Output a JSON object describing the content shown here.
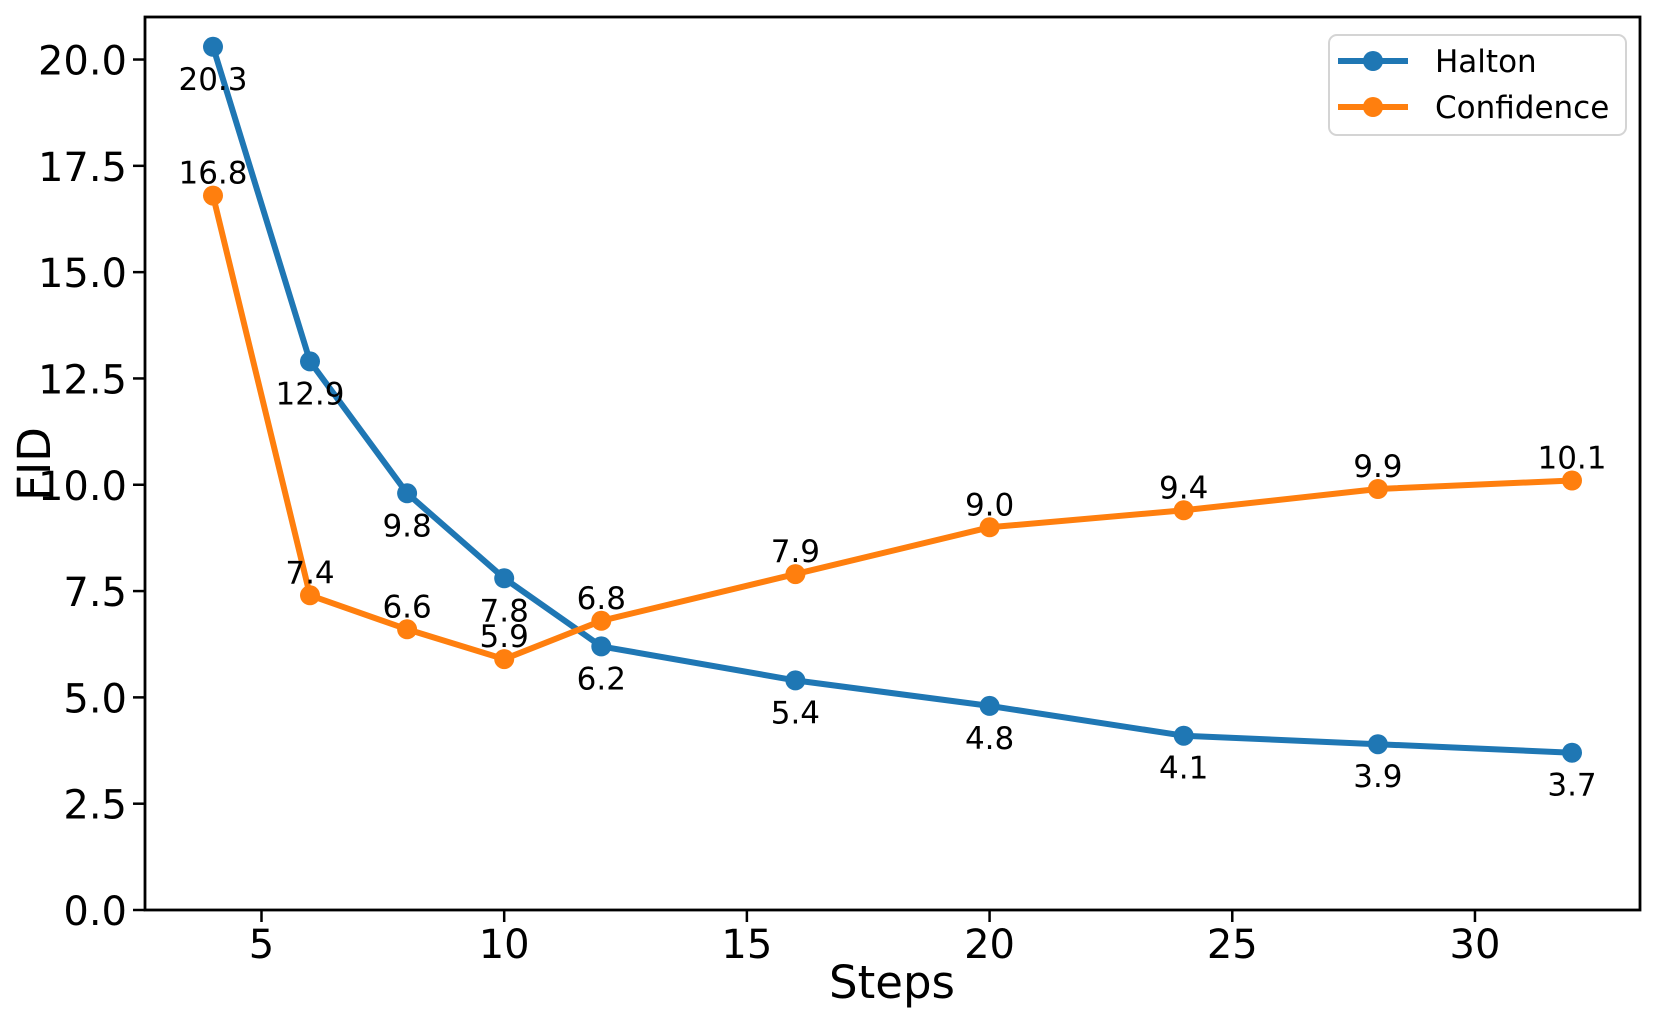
{
  "chart_data": {
    "type": "line",
    "title": "",
    "xlabel": "Steps",
    "ylabel": "FID",
    "x": [
      4,
      6,
      8,
      10,
      12,
      16,
      20,
      24,
      28,
      32
    ],
    "series": [
      {
        "name": "Halton",
        "color": "#1f77b4",
        "values": [
          20.3,
          12.9,
          9.8,
          7.8,
          6.2,
          5.4,
          4.8,
          4.1,
          3.9,
          3.7
        ],
        "labels": [
          "20.3",
          "12.9",
          "9.8",
          "7.8",
          "6.2",
          "5.4",
          "4.8",
          "4.1",
          "3.9",
          "3.7"
        ],
        "point_label_position": "below"
      },
      {
        "name": "Confidence",
        "color": "#ff7f0e",
        "values": [
          16.8,
          7.4,
          6.6,
          5.9,
          6.8,
          7.9,
          9.0,
          9.4,
          9.9,
          10.1
        ],
        "labels": [
          "16.8",
          "7.4",
          "6.6",
          "5.9",
          "6.8",
          "7.9",
          "9.0",
          "9.4",
          "9.9",
          "10.1"
        ],
        "point_label_position": "above"
      }
    ],
    "xticks": {
      "values": [
        5,
        10,
        15,
        20,
        25,
        30
      ],
      "labels": [
        "5",
        "10",
        "15",
        "20",
        "25",
        "30"
      ]
    },
    "yticks": {
      "values": [
        0,
        2.5,
        5,
        7.5,
        10,
        12.5,
        15,
        17.5,
        20
      ],
      "labels": [
        "0.0",
        "2.5",
        "5.0",
        "7.5",
        "10.0",
        "12.5",
        "15.0",
        "17.5",
        "20.0"
      ]
    },
    "xlim": [
      2.6,
      33.4
    ],
    "ylim": [
      0,
      21.0
    ],
    "grid": false,
    "legend": {
      "position": "upper right",
      "entries": [
        "Halton",
        "Confidence"
      ]
    },
    "axis_color": "#000000",
    "legend_border_color": "#d4d4d4",
    "background": "#ffffff"
  }
}
